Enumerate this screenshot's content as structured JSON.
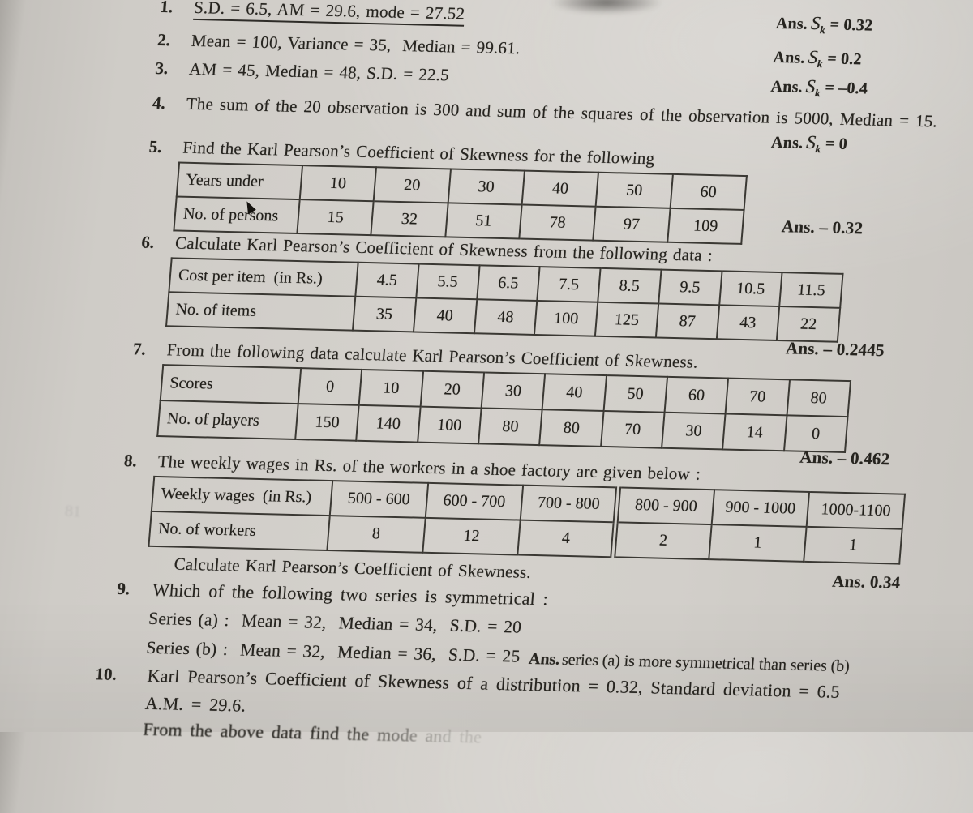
{
  "page": {
    "colors": {
      "paper": "#d2cfca",
      "ink": "#26241f",
      "table_border": "#3a3833"
    },
    "items": [
      {
        "num": "1.",
        "text": "S.D. = 6.5, AM = 29.6, mode = 27.52",
        "ans_label": "Ans.",
        "ans_var": "S",
        "ans_sub": "k",
        "ans_val": "= 0.32"
      },
      {
        "num": "2.",
        "text": "Mean = 100, Variance = 35,  Median = 99.61.",
        "ans_label": "Ans.",
        "ans_var": "S",
        "ans_sub": "k",
        "ans_val": "= 0.2"
      },
      {
        "num": "3.",
        "text": "AM = 45, Median = 48, S.D. = 22.5",
        "ans_label": "Ans.",
        "ans_var": "S",
        "ans_sub": "k",
        "ans_val": "= –0.4"
      },
      {
        "num": "4.",
        "text": "The sum of the 20 observation is 300 and sum of the squares of the observation is 5000, Median = 15.",
        "ans_label": "Ans.",
        "ans_var": "S",
        "ans_sub": "k",
        "ans_val": "= 0"
      },
      {
        "num": "5.",
        "text": "Find the Karl Pearson’s Coefficient of Skewness for the following",
        "table": [
          [
            "Years under",
            "10",
            "20",
            "30",
            "40",
            "50",
            "60"
          ],
          [
            "No. of persons",
            "15",
            "32",
            "51",
            "78",
            "97",
            "109"
          ]
        ],
        "ans": "Ans. – 0.32"
      },
      {
        "num": "6.",
        "text": "Calculate Karl Pearson’s Coefficient of Skewness from the following data :",
        "table": [
          [
            "Cost per item  (in Rs.)",
            "4.5",
            "5.5",
            "6.5",
            "7.5",
            "8.5",
            "9.5",
            "10.5",
            "11.5"
          ],
          [
            "No. of items",
            "35",
            "40",
            "48",
            "100",
            "125",
            "87",
            "43",
            "22"
          ]
        ],
        "ans": "Ans. – 0.2445"
      },
      {
        "num": "7.",
        "text": "From the following data calculate Karl Pearson’s Coefficient of Skewness.",
        "table": [
          [
            "Scores",
            "0",
            "10",
            "20",
            "30",
            "40",
            "50",
            "60",
            "70",
            "80"
          ],
          [
            "No. of players",
            "150",
            "140",
            "100",
            "80",
            "80",
            "70",
            "30",
            "14",
            "0"
          ]
        ],
        "ans": "Ans. – 0.462"
      },
      {
        "num": "8.",
        "text": "The weekly wages in Rs. of the workers in a shoe factory are given below :",
        "table": [
          [
            "Weekly wages  (in Rs.)",
            "500 - 600",
            "600 - 700",
            "700 - 800",
            "800 - 900",
            "900 - 1000",
            "1000-1100"
          ],
          [
            "No. of workers",
            "8",
            "12",
            "4",
            "2",
            "1",
            "1"
          ]
        ],
        "followup": "Calculate Karl Pearson’s Coefficient of Skewness.",
        "ans": "Ans. 0.34"
      },
      {
        "num": "9.",
        "text": "Which of the following two series is symmetrical :",
        "series_a": "Series (a) :  Mean = 32,  Median = 34,  S.D. = 20",
        "series_b": "Series (b) :  Mean = 32,  Median = 36,  S.D. = 25",
        "ans_label": "Ans.",
        "ans_text": "series (a) is more symmetrical than series (b)"
      },
      {
        "num": "10.",
        "line1": "Karl Pearson’s Coefficient of Skewness of a distribution = 0.32, Standard deviation = 6.5",
        "line2": "A.M. = 29.6.",
        "footer": "From the above data find the mode and the"
      }
    ],
    "artifacts": {
      "bleed_mark": "81"
    }
  }
}
